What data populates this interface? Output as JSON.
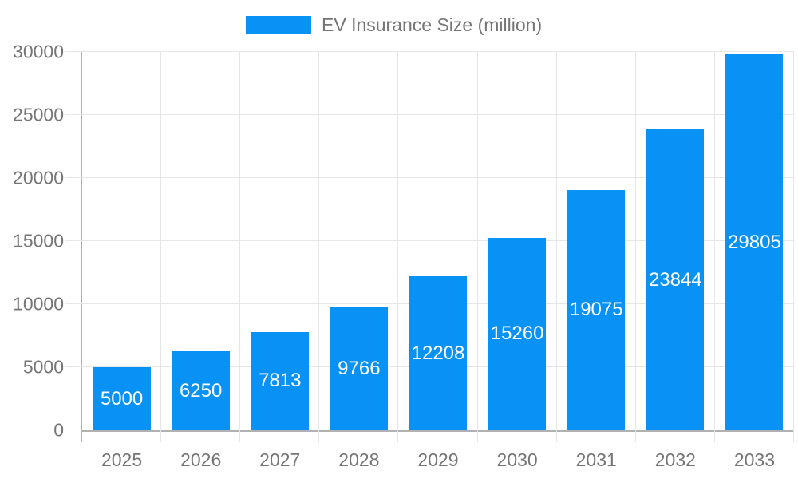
{
  "chart_data": {
    "type": "bar",
    "title": "EV Insurance Size (million)",
    "legend_entries": [
      "EV Insurance Size (million)"
    ],
    "legend_position": "top",
    "categories": [
      "2025",
      "2026",
      "2027",
      "2028",
      "2029",
      "2030",
      "2031",
      "2032",
      "2033"
    ],
    "values": [
      5000,
      6250,
      7813,
      9766,
      12208,
      15260,
      19075,
      23844,
      29805
    ],
    "value_labels_shown": true,
    "value_label_placement": "inside-center",
    "xlabel": "",
    "ylabel": "",
    "ylim": [
      0,
      30000
    ],
    "yticks": [
      0,
      5000,
      10000,
      15000,
      20000,
      25000,
      30000
    ],
    "grid": true
  },
  "colors": {
    "bar": "#0992f5",
    "bar_label_text": "#ffffff",
    "axis_text": "#757575",
    "grid_line": "#e6e6e6",
    "axis_line": "#b1b1b1",
    "background": "#ffffff"
  }
}
